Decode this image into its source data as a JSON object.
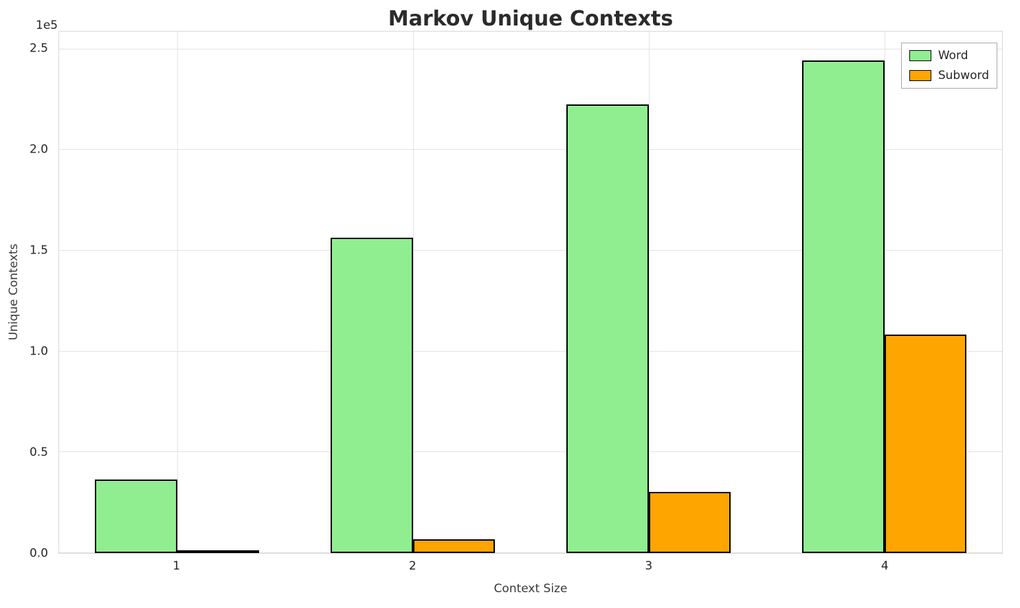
{
  "chart_data": {
    "type": "bar",
    "title": "Markov Unique Contexts",
    "xlabel": "Context Size",
    "ylabel": "Unique Contexts",
    "offset_text": "1e5",
    "categories": [
      "1",
      "2",
      "3",
      "4"
    ],
    "series": [
      {
        "name": "Word",
        "color": "#90EE90",
        "values": [
          36500,
          156500,
          222500,
          244500
        ]
      },
      {
        "name": "Subword",
        "color": "#FFA500",
        "values": [
          1500,
          6800,
          30500,
          108500
        ]
      }
    ],
    "ylim": [
      0,
      258800
    ],
    "yticks": [
      0,
      50000,
      100000,
      150000,
      200000,
      250000
    ],
    "ytick_labels": [
      "0.0",
      "0.5",
      "1.0",
      "1.5",
      "2.0",
      "2.5"
    ],
    "bar_edge_color": "#000000",
    "grid": true,
    "legend_position": "upper right"
  }
}
